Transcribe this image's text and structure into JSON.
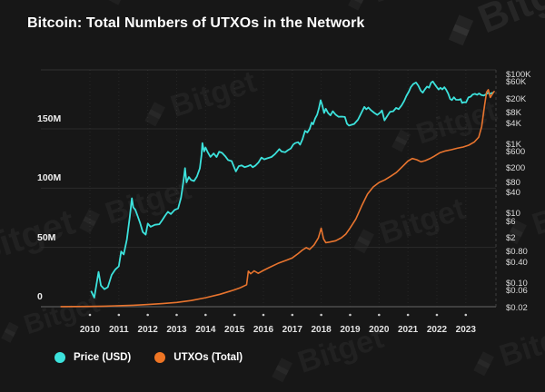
{
  "title": "Bitcoin: Total Numbers of UTXOs in the Network",
  "watermark": {
    "text": "Bitget"
  },
  "legend": [
    {
      "label": "Price (USD)",
      "color": "#3ce2dc"
    },
    {
      "label": "UTXOs (Total)",
      "color": "#ee7524"
    }
  ],
  "colors": {
    "background": "#171717",
    "title_text": "#ffffff",
    "axis_text": "#dcdcdc",
    "gridline": "#2b2b2b",
    "axis_line": "#4d4d4d",
    "price_line": "#3ce2dc",
    "utxo_line": "#e8742e"
  },
  "chart_data": {
    "type": "line",
    "title": "Bitcoin: Total Numbers of UTXOs in the Network",
    "grid": "horizontal solid at left-axis ticks, vertical dotted at years, dashed right border",
    "legend_position": "bottom-left",
    "x_axis": {
      "domain": [
        2009,
        2024
      ],
      "tick_years": [
        "2010",
        "2011",
        "2012",
        "2013",
        "2014",
        "2015",
        "2016",
        "2017",
        "2018",
        "2019",
        "2020",
        "2021",
        "2022",
        "2023"
      ]
    },
    "left_axis": {
      "title": "UTXOs total",
      "scale": "linear",
      "unit": "millions",
      "range": [
        0,
        200
      ],
      "ticks": [
        {
          "label": "150M",
          "value": 150
        },
        {
          "label": "100M",
          "value": 100
        },
        {
          "label": "50M",
          "value": 50
        },
        {
          "label": "0",
          "value": 0
        }
      ]
    },
    "right_axis": {
      "title": "Price (USD)",
      "scale": "log",
      "range": [
        0.02,
        144000
      ],
      "ticks": [
        {
          "label": "$100K",
          "value": 100000
        },
        {
          "label": "$60K",
          "value": 60000
        },
        {
          "label": "$20K",
          "value": 20000
        },
        {
          "label": "$8K",
          "value": 8000
        },
        {
          "label": "$4K",
          "value": 4000
        },
        {
          "label": "$1K",
          "value": 1000
        },
        {
          "label": "$600",
          "value": 600
        },
        {
          "label": "$200",
          "value": 200
        },
        {
          "label": "$80",
          "value": 80
        },
        {
          "label": "$40",
          "value": 40
        },
        {
          "label": "$10",
          "value": 10
        },
        {
          "label": "$6",
          "value": 6
        },
        {
          "label": "$2",
          "value": 2
        },
        {
          "label": "$0.80",
          "value": 0.8
        },
        {
          "label": "$0.40",
          "value": 0.4
        },
        {
          "label": "$0.10",
          "value": 0.1
        },
        {
          "label": "$0.06",
          "value": 0.06
        },
        {
          "label": "$0.02",
          "value": 0.02
        }
      ]
    },
    "series": [
      {
        "name": "Price (USD)",
        "axis": "right",
        "color": "#3ce2dc",
        "unit": "USD",
        "points": [
          [
            2010.05,
            0.06
          ],
          [
            2010.15,
            0.04
          ],
          [
            2010.3,
            0.22
          ],
          [
            2010.38,
            0.09
          ],
          [
            2010.5,
            0.07
          ],
          [
            2010.62,
            0.08
          ],
          [
            2010.75,
            0.18
          ],
          [
            2010.88,
            0.26
          ],
          [
            2011.0,
            0.32
          ],
          [
            2011.08,
            0.85
          ],
          [
            2011.17,
            0.7
          ],
          [
            2011.28,
            1.9
          ],
          [
            2011.38,
            8.5
          ],
          [
            2011.45,
            29
          ],
          [
            2011.5,
            16
          ],
          [
            2011.57,
            13.5
          ],
          [
            2011.65,
            9
          ],
          [
            2011.73,
            5.8
          ],
          [
            2011.83,
            3.1
          ],
          [
            2011.93,
            2.6
          ],
          [
            2012.0,
            5.4
          ],
          [
            2012.1,
            4.4
          ],
          [
            2012.25,
            5.0
          ],
          [
            2012.4,
            5.2
          ],
          [
            2012.5,
            6.8
          ],
          [
            2012.6,
            9.2
          ],
          [
            2012.7,
            11.8
          ],
          [
            2012.8,
            10.2
          ],
          [
            2012.93,
            13.4
          ],
          [
            2013.05,
            14.8
          ],
          [
            2013.15,
            30
          ],
          [
            2013.24,
            95
          ],
          [
            2013.29,
            213
          ],
          [
            2013.34,
            83
          ],
          [
            2013.42,
            118
          ],
          [
            2013.5,
            97
          ],
          [
            2013.6,
            91
          ],
          [
            2013.7,
            123
          ],
          [
            2013.8,
            210
          ],
          [
            2013.86,
            520
          ],
          [
            2013.89,
            1120
          ],
          [
            2013.95,
            640
          ],
          [
            2014.0,
            835
          ],
          [
            2014.08,
            600
          ],
          [
            2014.17,
            450
          ],
          [
            2014.28,
            565
          ],
          [
            2014.38,
            445
          ],
          [
            2014.47,
            635
          ],
          [
            2014.57,
            585
          ],
          [
            2014.68,
            470
          ],
          [
            2014.78,
            365
          ],
          [
            2014.9,
            340
          ],
          [
            2015.0,
            215
          ],
          [
            2015.05,
            172
          ],
          [
            2015.15,
            244
          ],
          [
            2015.25,
            255
          ],
          [
            2015.35,
            228
          ],
          [
            2015.45,
            240
          ],
          [
            2015.55,
            263
          ],
          [
            2015.63,
            226
          ],
          [
            2015.73,
            255
          ],
          [
            2015.83,
            312
          ],
          [
            2015.93,
            428
          ],
          [
            2016.03,
            382
          ],
          [
            2016.13,
            408
          ],
          [
            2016.28,
            448
          ],
          [
            2016.4,
            542
          ],
          [
            2016.5,
            672
          ],
          [
            2016.55,
            752
          ],
          [
            2016.63,
            642
          ],
          [
            2016.75,
            612
          ],
          [
            2016.85,
            702
          ],
          [
            2016.95,
            788
          ],
          [
            2017.03,
            1020
          ],
          [
            2017.1,
            1120
          ],
          [
            2017.2,
            1190
          ],
          [
            2017.27,
            1010
          ],
          [
            2017.35,
            1440
          ],
          [
            2017.44,
            2520
          ],
          [
            2017.52,
            2260
          ],
          [
            2017.6,
            2860
          ],
          [
            2017.67,
            4350
          ],
          [
            2017.72,
            3880
          ],
          [
            2017.79,
            5800
          ],
          [
            2017.86,
            7400
          ],
          [
            2017.92,
            11200
          ],
          [
            2017.98,
            19100
          ],
          [
            2018.04,
            13400
          ],
          [
            2018.1,
            8250
          ],
          [
            2018.16,
            10900
          ],
          [
            2018.24,
            8150
          ],
          [
            2018.32,
            7050
          ],
          [
            2018.4,
            9250
          ],
          [
            2018.5,
            7350
          ],
          [
            2018.6,
            6400
          ],
          [
            2018.71,
            6500
          ],
          [
            2018.82,
            6350
          ],
          [
            2018.89,
            4050
          ],
          [
            2018.96,
            3580
          ],
          [
            2019.04,
            3760
          ],
          [
            2019.14,
            3980
          ],
          [
            2019.27,
            5280
          ],
          [
            2019.38,
            8050
          ],
          [
            2019.49,
            12350
          ],
          [
            2019.56,
            10550
          ],
          [
            2019.63,
            11850
          ],
          [
            2019.73,
            9750
          ],
          [
            2019.84,
            8250
          ],
          [
            2019.94,
            7250
          ],
          [
            2020.04,
            8450
          ],
          [
            2020.1,
            9750
          ],
          [
            2020.19,
            5050
          ],
          [
            2020.29,
            6850
          ],
          [
            2020.38,
            8850
          ],
          [
            2020.49,
            9250
          ],
          [
            2020.59,
            11550
          ],
          [
            2020.68,
            10650
          ],
          [
            2020.78,
            13550
          ],
          [
            2020.87,
            18400
          ],
          [
            2020.95,
            25800
          ],
          [
            2021.03,
            33800
          ],
          [
            2021.1,
            45800
          ],
          [
            2021.18,
            55800
          ],
          [
            2021.28,
            62200
          ],
          [
            2021.36,
            50200
          ],
          [
            2021.44,
            36600
          ],
          [
            2021.51,
            31800
          ],
          [
            2021.59,
            39800
          ],
          [
            2021.66,
            47400
          ],
          [
            2021.73,
            43800
          ],
          [
            2021.8,
            61500
          ],
          [
            2021.86,
            66600
          ],
          [
            2021.92,
            56200
          ],
          [
            2021.99,
            46600
          ],
          [
            2022.06,
            38800
          ],
          [
            2022.12,
            43800
          ],
          [
            2022.19,
            39400
          ],
          [
            2022.26,
            45400
          ],
          [
            2022.32,
            38800
          ],
          [
            2022.39,
            29800
          ],
          [
            2022.46,
            20800
          ],
          [
            2022.52,
            19400
          ],
          [
            2022.59,
            23400
          ],
          [
            2022.66,
            19900
          ],
          [
            2022.76,
            19700
          ],
          [
            2022.82,
            20700
          ],
          [
            2022.87,
            16100
          ],
          [
            2022.94,
            16900
          ],
          [
            2023.01,
            16700
          ],
          [
            2023.09,
            23100
          ],
          [
            2023.17,
            24400
          ],
          [
            2023.24,
            28100
          ],
          [
            2023.32,
            29400
          ],
          [
            2023.39,
            27400
          ],
          [
            2023.46,
            30100
          ],
          [
            2023.54,
            26900
          ],
          [
            2023.62,
            26100
          ],
          [
            2023.69,
            28200
          ],
          [
            2023.77,
            31200
          ],
          [
            2023.84,
            29100
          ],
          [
            2023.92,
            31600
          ]
        ]
      },
      {
        "name": "UTXOs (Total)",
        "axis": "left",
        "color": "#e8742e",
        "unit": "millions",
        "points": [
          [
            2009.0,
            0.05
          ],
          [
            2009.5,
            0.12
          ],
          [
            2010.0,
            0.25
          ],
          [
            2010.5,
            0.45
          ],
          [
            2011.0,
            0.85
          ],
          [
            2011.5,
            1.25
          ],
          [
            2012.0,
            1.8
          ],
          [
            2012.5,
            2.6
          ],
          [
            2013.0,
            3.6
          ],
          [
            2013.5,
            5.2
          ],
          [
            2014.0,
            7.6
          ],
          [
            2014.5,
            10.5
          ],
          [
            2015.0,
            14.2
          ],
          [
            2015.2,
            16.0
          ],
          [
            2015.42,
            18.5
          ],
          [
            2015.48,
            30.0
          ],
          [
            2015.56,
            27.8
          ],
          [
            2015.68,
            30.2
          ],
          [
            2015.82,
            28.2
          ],
          [
            2016.0,
            30.6
          ],
          [
            2016.2,
            33.0
          ],
          [
            2016.5,
            36.5
          ],
          [
            2016.8,
            39.2
          ],
          [
            2017.0,
            41.2
          ],
          [
            2017.2,
            44.8
          ],
          [
            2017.35,
            47.8
          ],
          [
            2017.48,
            49.8
          ],
          [
            2017.6,
            48.4
          ],
          [
            2017.75,
            52.0
          ],
          [
            2017.9,
            58.0
          ],
          [
            2018.0,
            66.2
          ],
          [
            2018.08,
            57.2
          ],
          [
            2018.16,
            54.0
          ],
          [
            2018.3,
            54.6
          ],
          [
            2018.5,
            55.6
          ],
          [
            2018.7,
            58.2
          ],
          [
            2018.85,
            61.2
          ],
          [
            2019.0,
            66.4
          ],
          [
            2019.2,
            74.0
          ],
          [
            2019.4,
            85.0
          ],
          [
            2019.6,
            95.0
          ],
          [
            2019.8,
            101.0
          ],
          [
            2020.0,
            104.8
          ],
          [
            2020.2,
            107.0
          ],
          [
            2020.4,
            110.0
          ],
          [
            2020.6,
            113.2
          ],
          [
            2020.8,
            118.0
          ],
          [
            2021.0,
            122.8
          ],
          [
            2021.15,
            125.0
          ],
          [
            2021.3,
            124.0
          ],
          [
            2021.45,
            122.2
          ],
          [
            2021.6,
            123.2
          ],
          [
            2021.75,
            124.8
          ],
          [
            2021.9,
            126.8
          ],
          [
            2022.1,
            129.8
          ],
          [
            2022.3,
            131.4
          ],
          [
            2022.5,
            132.4
          ],
          [
            2022.7,
            133.6
          ],
          [
            2022.9,
            134.6
          ],
          [
            2023.1,
            136.2
          ],
          [
            2023.3,
            139.0
          ],
          [
            2023.45,
            143.0
          ],
          [
            2023.55,
            152.0
          ],
          [
            2023.65,
            170.0
          ],
          [
            2023.72,
            181.0
          ],
          [
            2023.78,
            183.0
          ],
          [
            2023.85,
            176.5
          ],
          [
            2023.92,
            179.5
          ],
          [
            2023.98,
            181.5
          ]
        ]
      }
    ]
  }
}
